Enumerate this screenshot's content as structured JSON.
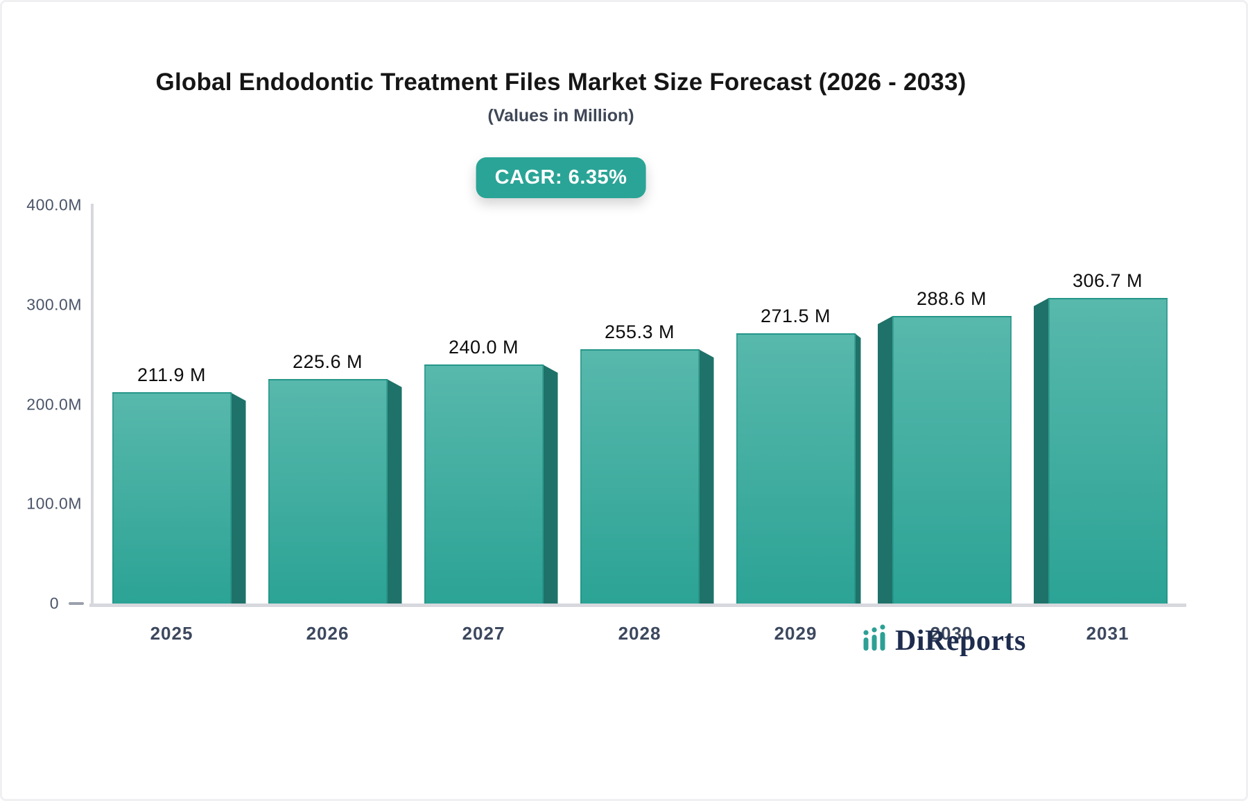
{
  "header": {
    "title": "Global Endodontic Treatment Files Market Size Forecast (2026 - 2033)",
    "subtitle": "(Values in Million)"
  },
  "cagr_badge": {
    "label": "CAGR: 6.35%",
    "background": "#2aa496",
    "text_color": "#ffffff"
  },
  "chart_data": {
    "type": "bar",
    "title": "Global Endodontic Treatment Files Market Size Forecast (2026 - 2033)",
    "subtitle": "(Values in Million)",
    "categories": [
      "2025",
      "2026",
      "2027",
      "2028",
      "2029",
      "2030",
      "2031"
    ],
    "values": [
      211.9,
      225.6,
      240.0,
      255.3,
      271.5,
      288.6,
      306.7
    ],
    "value_labels": [
      "211.9 M",
      "225.6 M",
      "240.0 M",
      "255.3 M",
      "271.5 M",
      "288.6 M",
      "306.7 M"
    ],
    "xlabel": "",
    "ylabel": "",
    "ylim": [
      0,
      400
    ],
    "yticks": [
      {
        "value": 400,
        "label": "400.0M",
        "dash": false
      },
      {
        "value": 300,
        "label": "300.0M",
        "dash": false
      },
      {
        "value": 200,
        "label": "200.0M",
        "dash": false
      },
      {
        "value": 100,
        "label": "100.0M",
        "dash": false
      },
      {
        "value": 0,
        "label": "0",
        "dash": true
      }
    ],
    "grid": false,
    "legend": "none",
    "bar_style": "3d-beveled",
    "side_placement": [
      "right",
      "right",
      "right",
      "right",
      "right-thin",
      "left",
      "left"
    ],
    "bar_face_gradient": [
      "#58b8ac",
      "#2ba395"
    ],
    "bar_side_color": "#1f7269",
    "axis_color": "#d6d8dd",
    "tick_label_color": "#4a5468",
    "category_label_color": "#3c485e",
    "value_label_color": "#0d0d0d"
  },
  "branding": {
    "logo_text": "DiReports",
    "logo_icon": "bar-chart-icon",
    "logo_text_color": "#1e2c4e",
    "logo_icon_color": "#2ca094"
  }
}
